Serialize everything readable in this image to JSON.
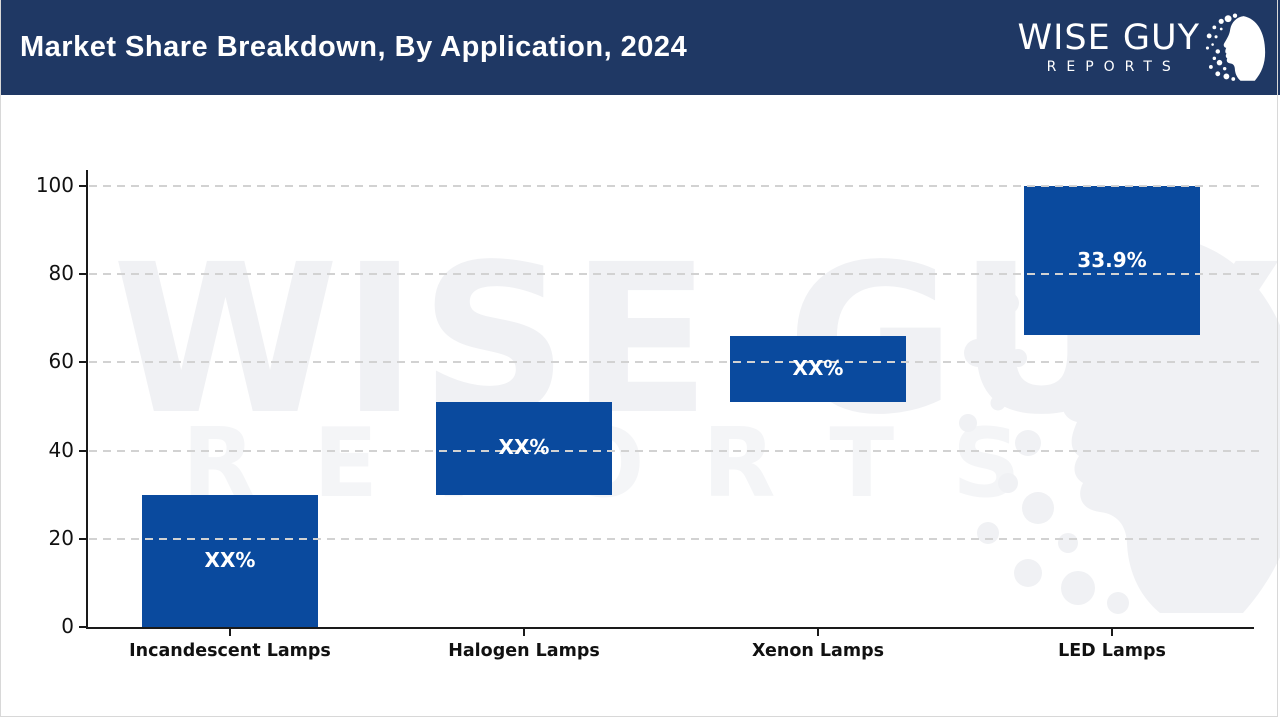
{
  "header": {
    "title": "Market Share Breakdown, By Application, 2024",
    "bg_color": "#1f3864",
    "logo_line1": "WISE GUY",
    "logo_line2": "REPORTS"
  },
  "watermark": {
    "line1": "WISE GUY",
    "line2": "REPORTS"
  },
  "chart_data": {
    "type": "bar",
    "subtype": "floating-waterfall",
    "title": "Market Share Breakdown, By Application, 2024",
    "categories": [
      "Incandescent Lamps",
      "Halogen Lamps",
      "Xenon Lamps",
      "LED Lamps"
    ],
    "series": [
      {
        "name": "Market share (%)",
        "segments": [
          {
            "category": "Incandescent Lamps",
            "start": 0,
            "end": 30,
            "label": "XX%"
          },
          {
            "category": "Halogen Lamps",
            "start": 30,
            "end": 51,
            "label": "XX%"
          },
          {
            "category": "Xenon Lamps",
            "start": 51,
            "end": 66,
            "label": "XX%"
          },
          {
            "category": "LED Lamps",
            "start": 66.1,
            "end": 100,
            "label": "33.9%"
          }
        ]
      }
    ],
    "xlabel": "",
    "ylabel": "",
    "yticks": [
      0,
      20,
      40,
      60,
      80,
      100
    ],
    "ylim": [
      0,
      104
    ],
    "grid": "horizontal-dashed",
    "legend": "none",
    "bar_color": "#0a4a9e",
    "bar_label_color": "#ffffff",
    "grid_color": "#d2d2d2",
    "axis_color": "#1a1a1a"
  }
}
